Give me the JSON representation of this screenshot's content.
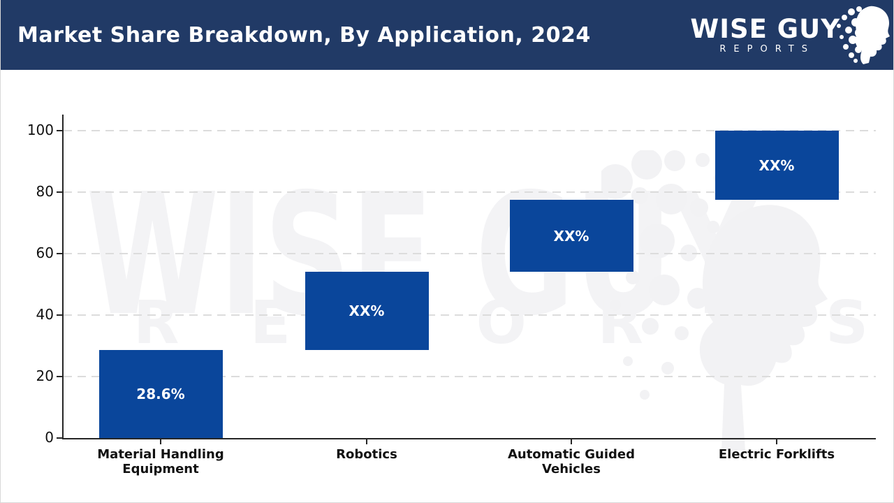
{
  "header": {
    "title": "Market Share Breakdown, By Application, 2024",
    "bg_color": "#213a66",
    "logo": {
      "line1": "WISE GUY",
      "line2": "REPORTS"
    }
  },
  "watermark": {
    "line1": "WISE GUY",
    "line2": "R E P O R T S"
  },
  "chart_data": {
    "type": "bar",
    "subtype": "waterfall",
    "title": "Market Share Breakdown, By Application, 2024",
    "categories": [
      "Material Handling Equipment",
      "Robotics",
      "Automatic Guided Vehicles",
      "Electric Forklifts"
    ],
    "category_label_lines": [
      [
        "Material Handling",
        "Equipment"
      ],
      [
        "Robotics"
      ],
      [
        "Automatic Guided",
        "Vehicles"
      ],
      [
        "Electric Forklifts"
      ]
    ],
    "segments": [
      {
        "category": "Material Handling Equipment",
        "start": 0,
        "end": 28.6,
        "label": "28.6%"
      },
      {
        "category": "Robotics",
        "start": 28.6,
        "end": 54,
        "label": "XX%"
      },
      {
        "category": "Automatic Guided Vehicles",
        "start": 54,
        "end": 77.4,
        "label": "XX%"
      },
      {
        "category": "Electric Forklifts",
        "start": 77.4,
        "end": 100,
        "label": "XX%"
      }
    ],
    "ylim": [
      0,
      100
    ],
    "yticks": [
      0,
      20,
      40,
      60,
      80,
      100
    ],
    "grid": "horizontal-dashed",
    "legend": "none",
    "bar_color": "#0a469b",
    "bar_label_color": "#ffffff",
    "axis_color": "#262626"
  }
}
